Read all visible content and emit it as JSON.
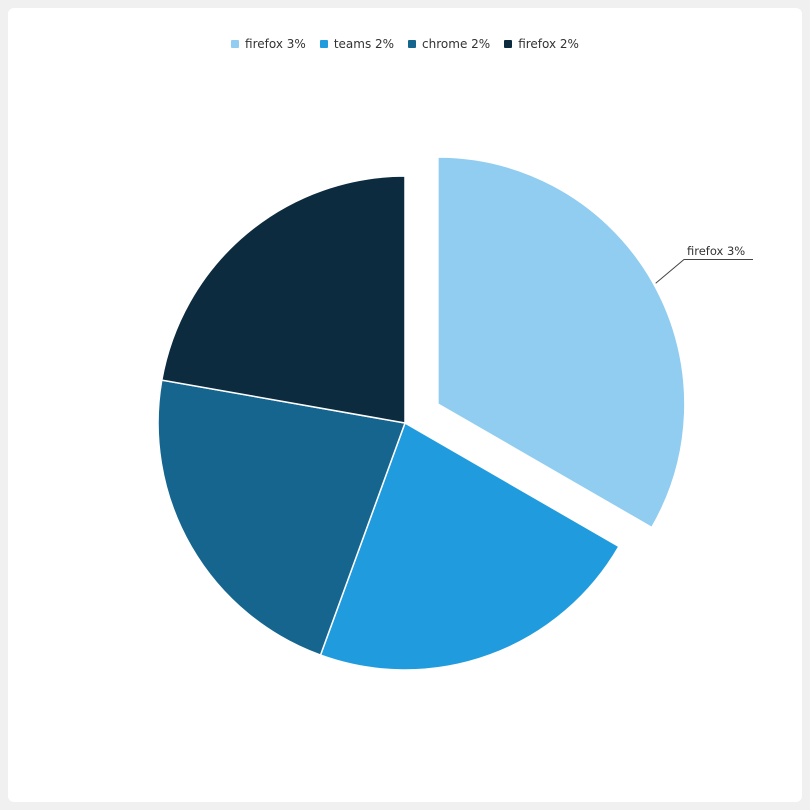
{
  "page": {
    "background_color": "#f0f0f0",
    "card_color": "#ffffff"
  },
  "chart_data": {
    "type": "pie",
    "title": "",
    "legend_position": "top",
    "direction": "clockwise",
    "start_angle_deg": 0,
    "slices": [
      {
        "label": "firefox 3%",
        "name": "firefox",
        "value": 3,
        "color": "#90cdf0",
        "exploded": true
      },
      {
        "label": "teams 2%",
        "name": "teams",
        "value": 2,
        "color": "#209cde",
        "exploded": false
      },
      {
        "label": "chrome 2%",
        "name": "chrome",
        "value": 2,
        "color": "#15658f",
        "exploded": false
      },
      {
        "label": "firefox 2%",
        "name": "firefox",
        "value": 2,
        "color": "#0c2b3f",
        "exploded": false
      }
    ],
    "outside_label": {
      "text": "firefox 3%",
      "slice_index": 0
    },
    "legend_text_color": "#333333",
    "connector_color": "#444444",
    "separator_color": "#ffffff"
  }
}
